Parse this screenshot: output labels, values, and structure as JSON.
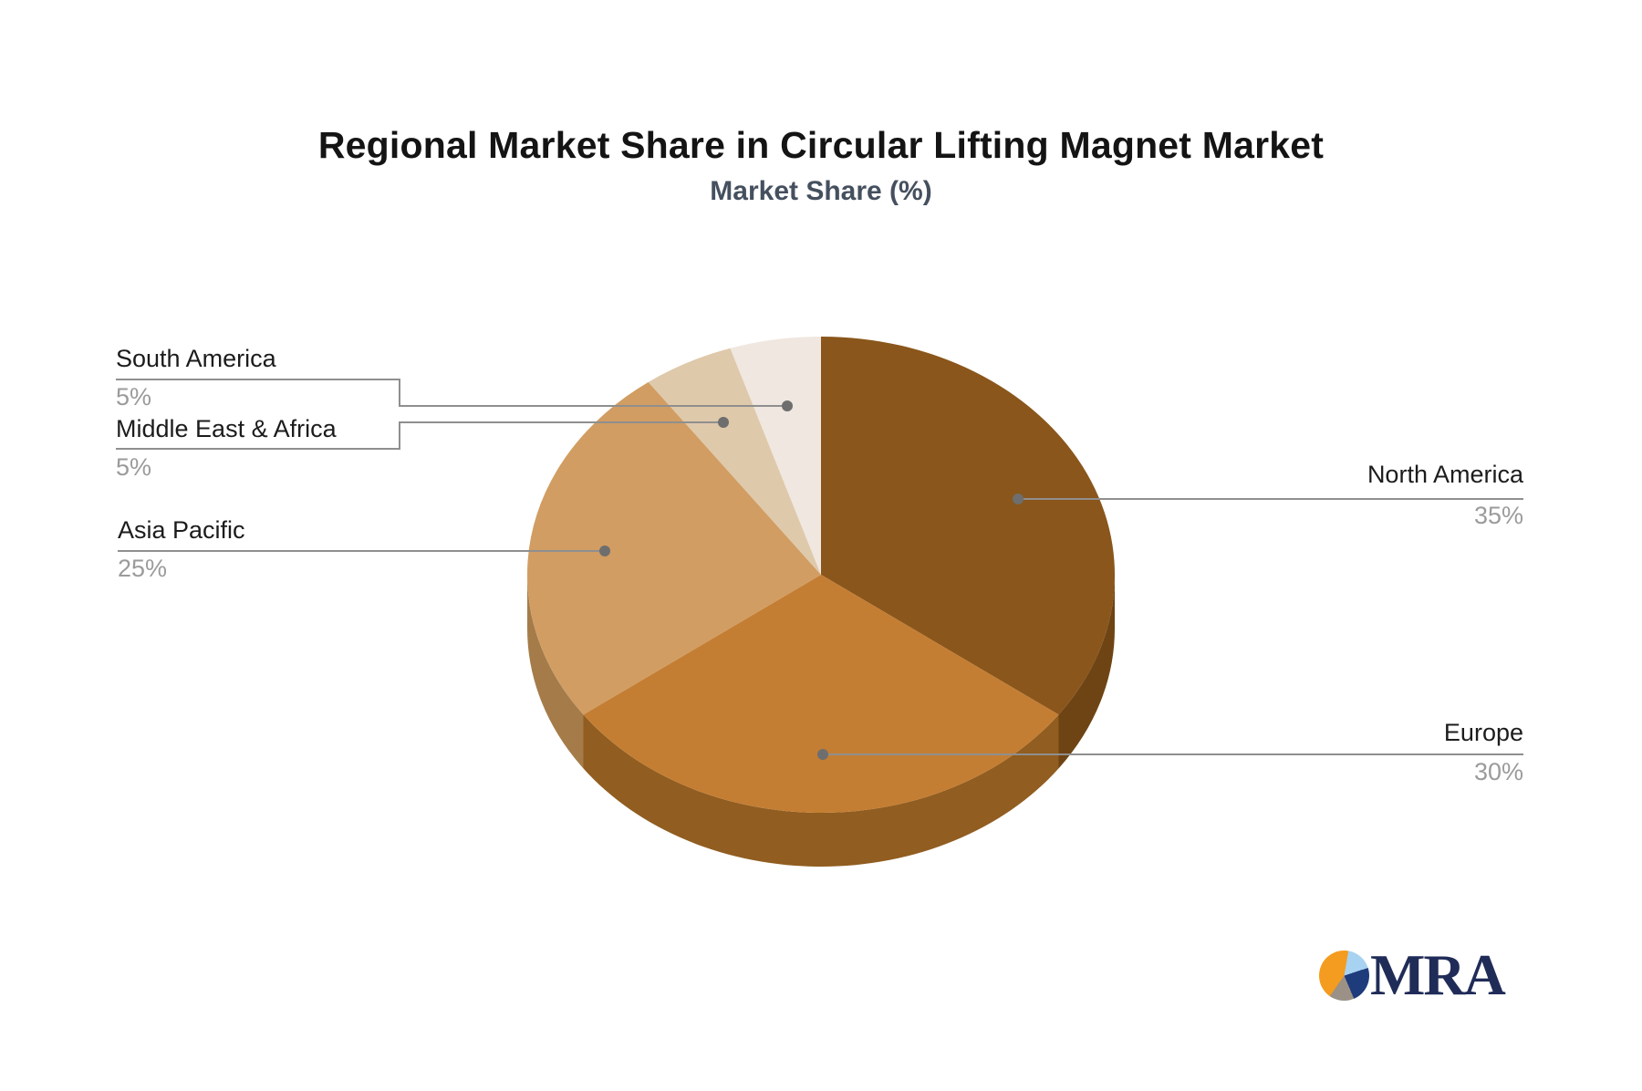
{
  "header": {
    "title": "Regional Market Share in Circular Lifting Magnet Market",
    "subtitle": "Market Share (%)"
  },
  "chart_data": {
    "type": "pie",
    "style": "3d-pie",
    "title": "Regional Market Share in Circular Lifting Magnet Market",
    "subtitle": "Market Share (%)",
    "unit": "%",
    "categories": [
      "North America",
      "Europe",
      "Asia Pacific",
      "Middle East & Africa",
      "South America"
    ],
    "values": [
      35,
      30,
      25,
      5,
      5
    ],
    "percent_labels": [
      "35%",
      "30%",
      "25%",
      "5%",
      "5%"
    ],
    "slice_colors": [
      "#8A561B",
      "#C47E33",
      "#D19D62",
      "#DFC9AB",
      "#EFE7E0"
    ],
    "side_colors": [
      "#6F4414",
      "#915D20",
      "#A57C49",
      "#C4A987",
      "#D6CBBF"
    ],
    "start_angle_deg": 0,
    "direction": "clockwise",
    "legend_position": "none",
    "label_style": "callout-lines-with-dots",
    "callout_line_color": "#8F8F8F",
    "callout_dot_color": "#6E6E6E",
    "name_text_color": "#1c1c1c",
    "percent_text_color": "#9B9B9B"
  },
  "logo": {
    "text": "MRA",
    "text_color": "#202C58",
    "mark_colors": {
      "orange": "#F39C1F",
      "light_blue": "#A8D2F2",
      "navy": "#1E3C7C",
      "gray": "#9B9186"
    }
  }
}
